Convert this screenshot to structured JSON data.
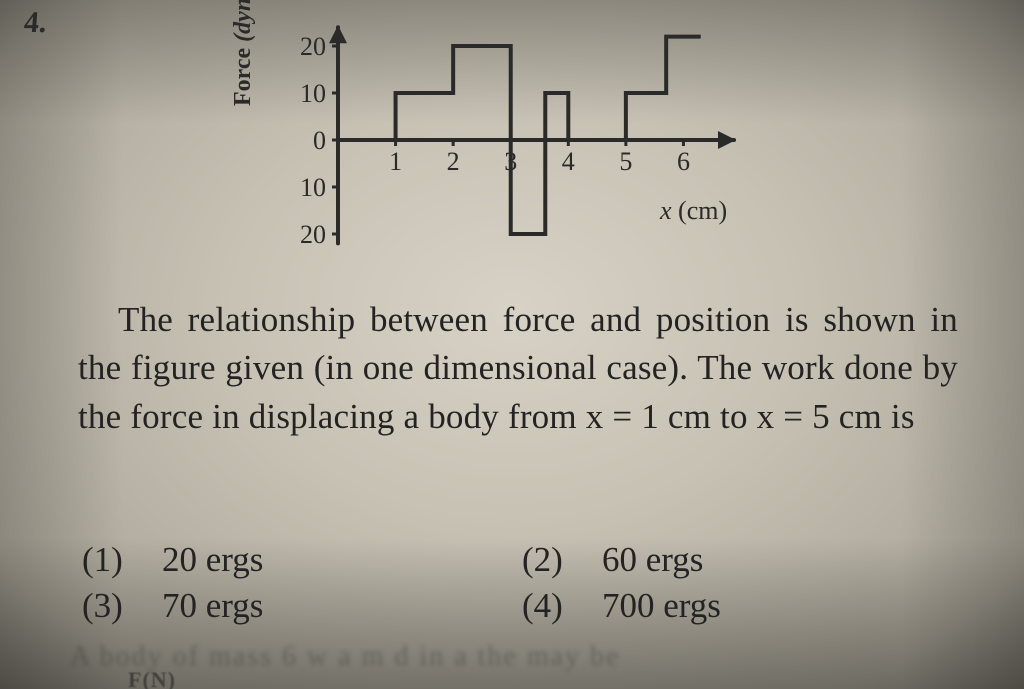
{
  "question_number": "4.",
  "chart": {
    "type": "step-line",
    "background_color": "transparent",
    "axis_color": "#2a2a2a",
    "line_color": "#2a2a2a",
    "stroke_width": 4,
    "arrow_size": 12,
    "x": {
      "min": 0,
      "max": 6.6,
      "ticks": [
        1,
        2,
        3,
        4,
        5,
        6
      ],
      "tick_labels": [
        "1",
        "2",
        "3",
        "4",
        "5",
        "6"
      ]
    },
    "y": {
      "min": -22,
      "max": 24,
      "ticks": [
        -20,
        -10,
        0,
        10,
        20
      ],
      "tick_labels": [
        "20",
        "10",
        "0",
        "10",
        "20"
      ]
    },
    "tick_len": 6,
    "tick_fontsize": 26,
    "path_xy": [
      [
        0,
        0
      ],
      [
        1,
        0
      ],
      [
        1,
        10
      ],
      [
        2,
        10
      ],
      [
        2,
        20
      ],
      [
        3,
        20
      ],
      [
        3,
        -20
      ],
      [
        3.6,
        -20
      ],
      [
        3.6,
        10
      ],
      [
        4,
        10
      ],
      [
        4,
        0
      ],
      [
        5,
        0
      ],
      [
        5,
        10
      ],
      [
        5.7,
        10
      ],
      [
        5.7,
        22
      ],
      [
        6.3,
        22
      ]
    ],
    "xlabel": "x (cm)",
    "ylabel": "Force (dyne)"
  },
  "question_text": "The relationship between force and position is shown in the figure given (in one dimensional case). The work done by the force in displacing a body from x = 1 cm to x = 5 cm is",
  "options": [
    {
      "n": "(1)",
      "t": "20 ergs"
    },
    {
      "n": "(2)",
      "t": "60 ergs"
    },
    {
      "n": "(3)",
      "t": "70 ergs"
    },
    {
      "n": "(4)",
      "t": "700 ergs"
    }
  ],
  "ylabel_main": "Force",
  "ylabel_unit": "(dyne)",
  "xlabel_var": "x",
  "xlabel_unit": "(cm)"
}
